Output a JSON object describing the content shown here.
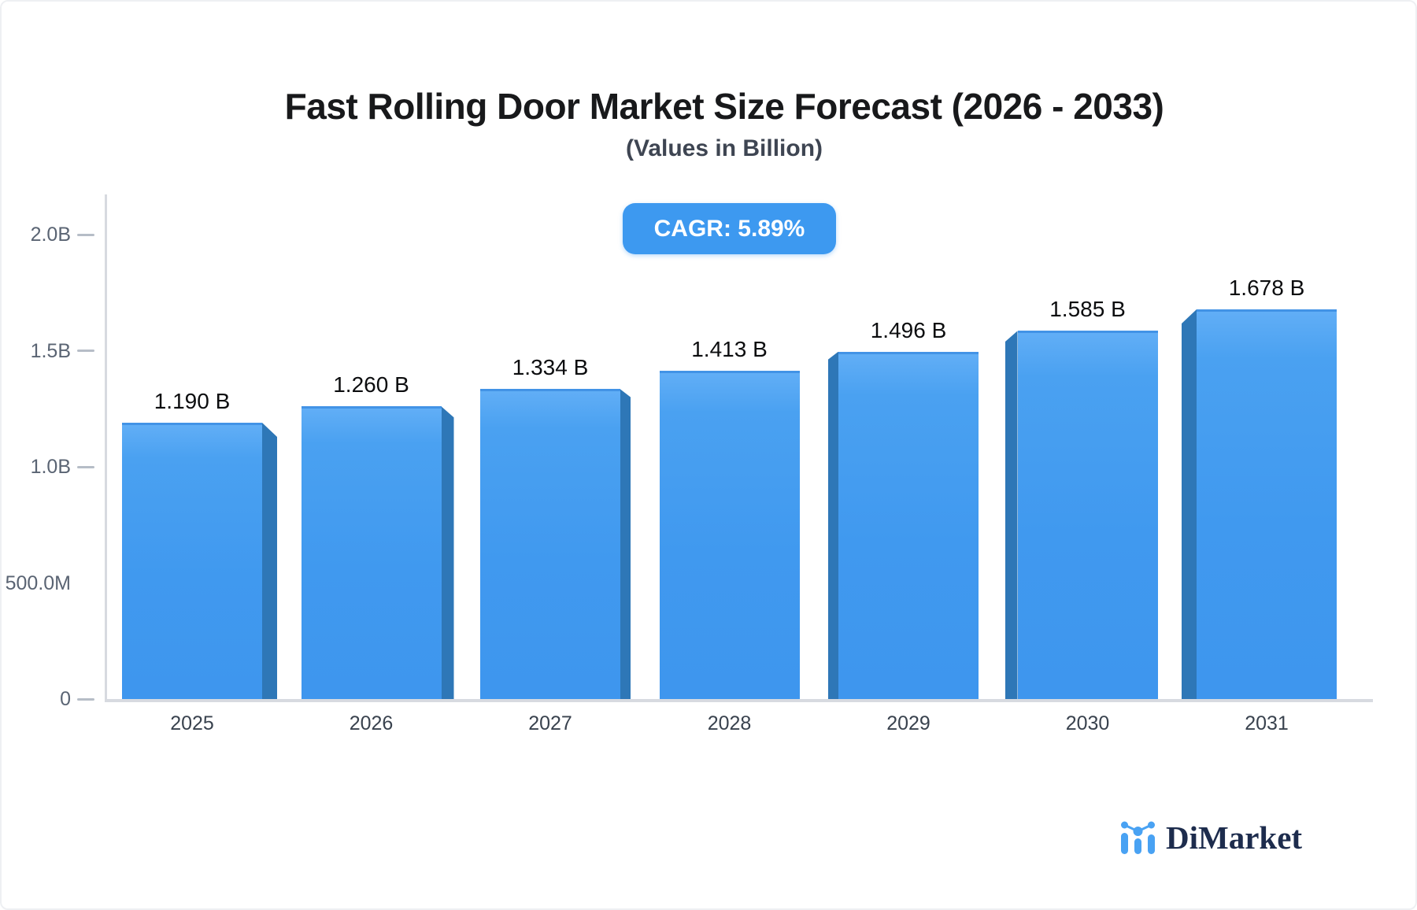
{
  "header": {
    "title": "Fast Rolling Door Market Size Forecast (2026 - 2033)",
    "subtitle": "(Values in Billion)"
  },
  "badge": {
    "label": "CAGR: 5.89%"
  },
  "chart_data": {
    "type": "bar",
    "title": "Fast Rolling Door Market Size Forecast (2026 - 2033)",
    "subtitle": "(Values in Billion)",
    "cagr_label": "CAGR: 5.89%",
    "categories": [
      "2025",
      "2026",
      "2027",
      "2028",
      "2029",
      "2030",
      "2031"
    ],
    "values": [
      1.19,
      1.26,
      1.334,
      1.413,
      1.496,
      1.585,
      1.678
    ],
    "value_labels": [
      "1.190 B",
      "1.260 B",
      "1.334 B",
      "1.413 B",
      "1.496 B",
      "1.585 B",
      "1.678 B"
    ],
    "xlabel": "",
    "ylabel": "",
    "ylim": [
      0,
      2.0
    ],
    "grid": false,
    "legend": false,
    "y_ticks": [
      {
        "label": "2.0B",
        "value": 2.0,
        "tick": true
      },
      {
        "label": "1.5B",
        "value": 1.5,
        "tick": true
      },
      {
        "label": "1.0B",
        "value": 1.0,
        "tick": true
      },
      {
        "label": "500.0M",
        "value": 0.5,
        "tick": false
      },
      {
        "label": "0",
        "value": 0.0,
        "tick": true
      }
    ]
  },
  "colors": {
    "accent": "#3d99f0",
    "bar_top": "#61aef6",
    "bar_bottom": "#3e96ee",
    "bar_side": "#2e77b7",
    "axis": "#d7dae0",
    "tick": "#b6bdc7",
    "badge_bg": "#3d99f0",
    "logo_blue": "#49a2f3",
    "logo_navy": "#1d2c4d"
  },
  "logo": {
    "text": "DiMarket",
    "icon": "bar-line-chart-icon"
  }
}
